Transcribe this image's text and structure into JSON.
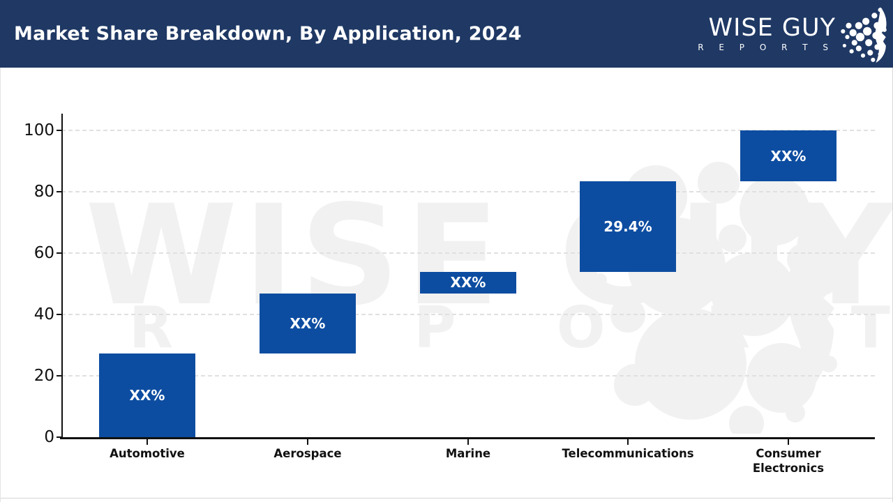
{
  "header": {
    "title": "Market Share Breakdown, By Application, 2024",
    "bg_color": "#1f3864",
    "logo": {
      "wordmark": "WISE GUY",
      "subtext": "R E P O R T S",
      "icon": "dotted-face-profile-icon"
    }
  },
  "watermark": {
    "line1": "WISE GUY",
    "line2": "REPORTS",
    "icon": "dotted-head-watermark"
  },
  "chart_data": {
    "type": "bar",
    "variant": "waterfall",
    "title": "Market Share Breakdown, By Application, 2024",
    "categories": [
      "Automotive",
      "Aerospace",
      "Marine",
      "Telecommunications",
      "Consumer Electronics"
    ],
    "series": [
      {
        "name": "Market share (%)",
        "segments": [
          {
            "category": "Automotive",
            "start": 0,
            "end": 27.3,
            "label": "XX%"
          },
          {
            "category": "Aerospace",
            "start": 27.3,
            "end": 46.9,
            "label": "XX%"
          },
          {
            "category": "Marine",
            "start": 46.9,
            "end": 53.9,
            "label": "XX%"
          },
          {
            "category": "Telecommunications",
            "start": 53.9,
            "end": 83.3,
            "label": "29.4%"
          },
          {
            "category": "Consumer Electronics",
            "start": 83.3,
            "end": 100,
            "label": "XX%"
          }
        ]
      }
    ],
    "yticks": [
      0,
      20,
      40,
      60,
      80,
      100
    ],
    "ylim": [
      0,
      105.5
    ],
    "xlabel": "",
    "ylabel": "",
    "legend": "none",
    "grid": "horizontal-dashed",
    "bar_color": "#0d4da1",
    "bar_label_color": "#ffffff",
    "axis_color": "#111111",
    "gridline_color": "#e0e0e0"
  }
}
